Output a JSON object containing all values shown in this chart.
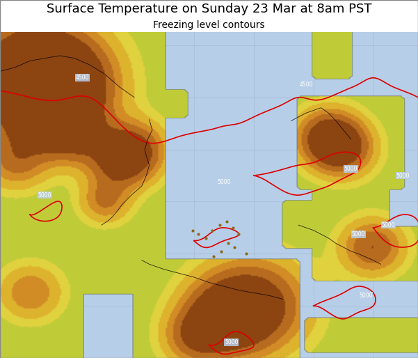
{
  "title": "Surface Temperature on Sunday 23 Mar at 8am PST",
  "subtitle": "Freezing level contours",
  "title_fontsize": 13,
  "subtitle_fontsize": 10,
  "figsize": [
    6.01,
    5.14
  ],
  "dpi": 100,
  "ocean_color": "#b8cfe8",
  "border_color": "#ffffff",
  "header_bg": "#f0f0f0",
  "grid_color": "#a0b8d0",
  "contour_color": "#dd0000",
  "contour_label_color": "#ffffff",
  "land_colors": {
    "high": "#8b4513",
    "mid_high": "#cd853f",
    "mid": "#daa520",
    "mid_low": "#e8c84a",
    "low": "#c8e040",
    "very_low": "#90c030"
  },
  "lon_min": 99,
  "lon_max": 127,
  "lat_min": 0,
  "lat_max": 25
}
